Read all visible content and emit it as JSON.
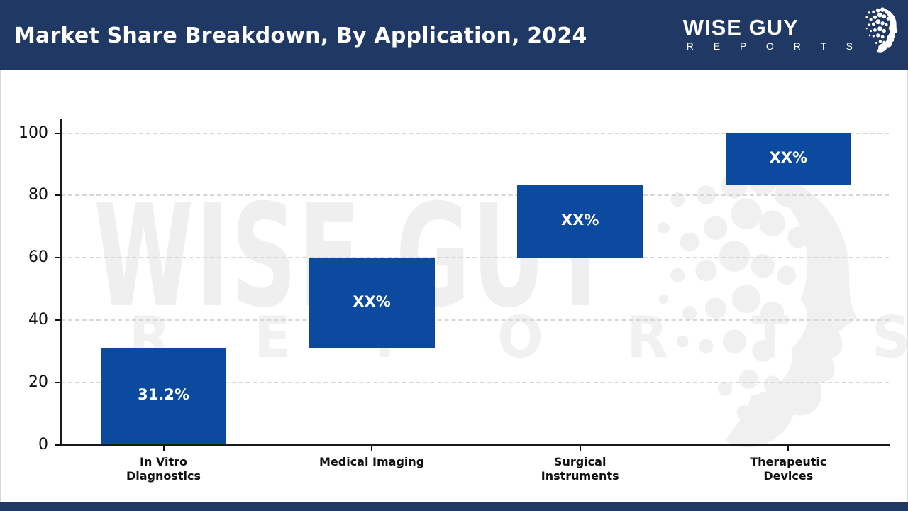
{
  "header": {
    "title": "Market Share Breakdown, By Application, 2024",
    "bg_color": "#1f3864"
  },
  "logo": {
    "brand": "WISE GUY",
    "sub": "R E P O R T S",
    "head_icon": "dotted-head-profile"
  },
  "watermark": {
    "brand": "WISE GUY",
    "sub": "R E P O R T S"
  },
  "chart_data": {
    "type": "bar",
    "subtype": "waterfall",
    "title": "Market Share Breakdown, By Application, 2024",
    "xlabel": "",
    "ylabel": "",
    "ylim": [
      0,
      104
    ],
    "yticks": [
      0,
      20,
      40,
      60,
      80,
      100
    ],
    "grid": "horizontal-dashed",
    "legend": "none",
    "bar_color": "#0c4aa0",
    "value_label_color": "#ffffff",
    "categories": [
      "In Vitro Diagnostics",
      "Medical Imaging",
      "Surgical Instruments",
      "Therapeutic Devices"
    ],
    "category_lines": [
      [
        "In Vitro",
        "Diagnostics"
      ],
      [
        "Medical Imaging"
      ],
      [
        "Surgical",
        "Instruments"
      ],
      [
        "Therapeutic",
        "Devices"
      ]
    ],
    "bars": [
      {
        "category": "In Vitro Diagnostics",
        "start": 0,
        "end": 31.2,
        "label": "31.2%"
      },
      {
        "category": "Medical Imaging",
        "start": 31.2,
        "end": 60,
        "label": "XX%"
      },
      {
        "category": "Surgical Instruments",
        "start": 60,
        "end": 83.5,
        "label": "XX%"
      },
      {
        "category": "Therapeutic Devices",
        "start": 83.5,
        "end": 100,
        "label": "XX%"
      }
    ]
  }
}
